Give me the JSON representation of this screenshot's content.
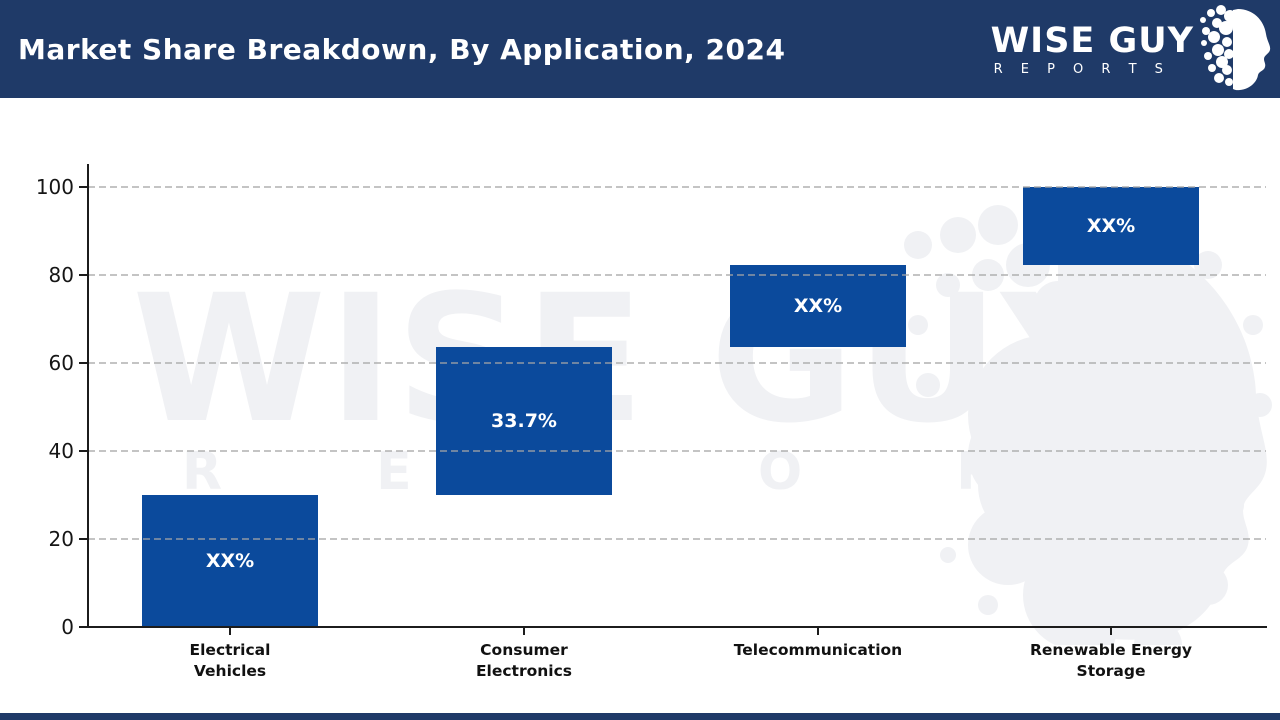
{
  "header": {
    "title": "Market Share Breakdown, By Application, 2024",
    "logo": {
      "line1": "WISE GUY",
      "line2": "R E P O R T S"
    }
  },
  "watermark": {
    "line1": "WISE GUY",
    "line2": "R E P O R T S"
  },
  "colors": {
    "header_bg": "#1f3a68",
    "bar": "#0b4a9c",
    "axis": "#1c1c1c",
    "watermark": "#f0f1f4"
  },
  "chart_data": {
    "type": "bar",
    "subtype": "floating-waterfall-segments",
    "title": "Market Share Breakdown, By Application, 2024",
    "categories": [
      "Electrical Vehicles",
      "Consumer Electronics",
      "Telecommunication",
      "Renewable Energy Storage"
    ],
    "category_label_lines": [
      [
        "Electrical",
        "Vehicles"
      ],
      [
        "Consumer",
        "Electronics"
      ],
      [
        "Telecommunication"
      ],
      [
        "Renewable Energy",
        "Storage"
      ]
    ],
    "segments": [
      {
        "category": "Electrical Vehicles",
        "start": 0,
        "end": 30,
        "label": "XX%"
      },
      {
        "category": "Consumer Electronics",
        "start": 30,
        "end": 63.7,
        "label": "33.7%"
      },
      {
        "category": "Telecommunication",
        "start": 63.7,
        "end": 82.3,
        "label": "XX%"
      },
      {
        "category": "Renewable Energy Storage",
        "start": 82.3,
        "end": 100,
        "label": "XX%"
      }
    ],
    "xlabel": "",
    "ylabel": "",
    "ylim": [
      0,
      100
    ],
    "yticks": [
      0,
      20,
      40,
      60,
      80,
      100
    ],
    "grid": "horizontal-dashed",
    "legend": "none",
    "bar_color": "#0b4a9c",
    "value_label_color": "#ffffff"
  }
}
